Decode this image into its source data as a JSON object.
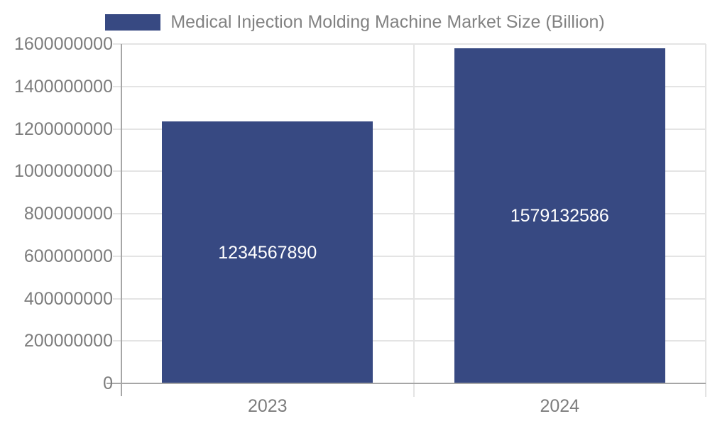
{
  "legend": {
    "label": "Medical Injection Molding Machine Market Size (Billion)",
    "swatch_color": "#374982"
  },
  "chart_data": {
    "type": "bar",
    "title": "Medical Injection Molding Machine Market Size (Billion)",
    "categories": [
      "2023",
      "2024"
    ],
    "series": [
      {
        "name": "Medical Injection Molding Machine Market Size (Billion)",
        "values": [
          1234567890,
          1579132586
        ]
      }
    ],
    "bar_labels": [
      "1234567890",
      "1579132586"
    ],
    "bar_label_position": "inside-center",
    "bar_color": "#374982",
    "bar_label_color": "#ffffff",
    "axis_text_color": "#7d7d7d",
    "xlabel": "",
    "ylabel": "",
    "ylim": [
      0,
      1600000000
    ],
    "ytick_interval": 200000000,
    "ytick_labels": [
      "0",
      "200000000",
      "400000000",
      "600000000",
      "800000000",
      "1000000000",
      "1200000000",
      "1400000000",
      "1600000000"
    ],
    "grid": true,
    "legend_position": "top"
  }
}
